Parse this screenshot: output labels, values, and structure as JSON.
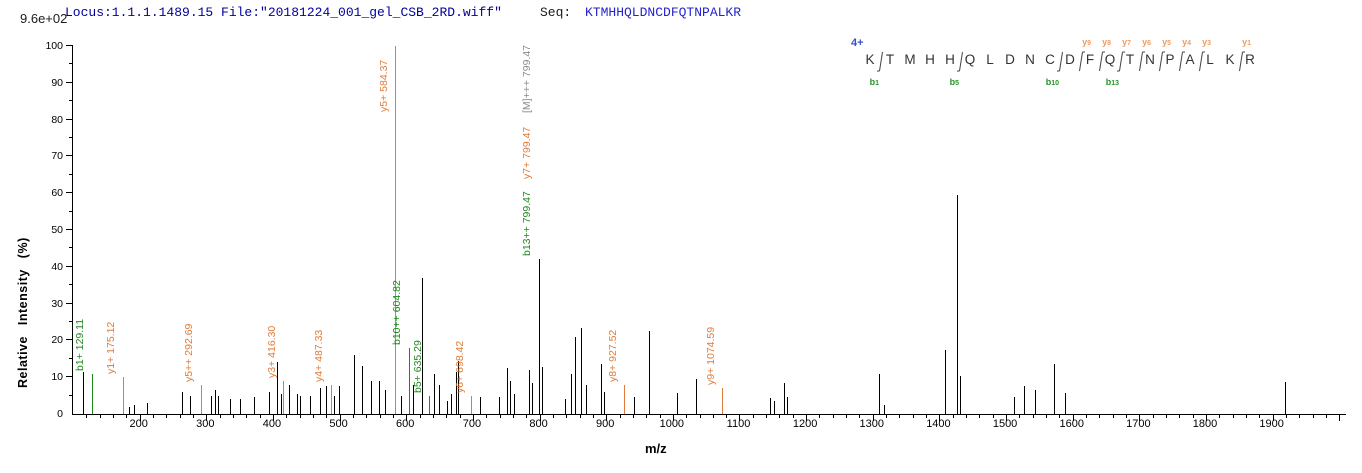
{
  "header": {
    "locus_file": "Locus:1.1.1.1489.15 File:\"20181224_001_gel_CSB_2RD.wiff\"",
    "seq_label": "Seq:",
    "seq_value": "KTMHHQLDNCDFQTNPALKR"
  },
  "y_axis": {
    "scale_label": "9.6e+02",
    "title": "Relative  Intensity  (%)",
    "tick_values": [
      0,
      10,
      20,
      30,
      40,
      50,
      60,
      70,
      80,
      90,
      100
    ]
  },
  "x_axis": {
    "title": "m/z",
    "tick_values": [
      200,
      300,
      400,
      500,
      600,
      700,
      800,
      900,
      1000,
      1100,
      1200,
      1300,
      1400,
      1500,
      1600,
      1700,
      1800,
      1900
    ]
  },
  "colors": {
    "peak": "#000000",
    "y_ion": "#e07b39",
    "b_ion": "#1d8a1d",
    "precursor": "#8a8a8a",
    "header_navy": "#000099",
    "seq_blue": "#2323cc",
    "charge_blue": "#3a50c8",
    "panel_y_ion": "#ef9c62",
    "panel_b_ion": "#27922a",
    "residue_text": "#333333"
  },
  "sequence_panel": {
    "charge": "4+",
    "residues": [
      "K",
      "T",
      "M",
      "H",
      "H",
      "Q",
      "L",
      "D",
      "N",
      "C",
      "D",
      "F",
      "Q",
      "T",
      "N",
      "P",
      "A",
      "L",
      "K",
      "R"
    ],
    "cuts": [
      {
        "after": 1,
        "b": "b1"
      },
      {
        "after": 5,
        "b": "b5"
      },
      {
        "after": 10,
        "b": "b10"
      },
      {
        "after": 11,
        "y": "y9"
      },
      {
        "after": 12,
        "y": "y8"
      },
      {
        "after": 13,
        "y": "y7",
        "b": "b13"
      },
      {
        "after": 14,
        "y": "y6"
      },
      {
        "after": 15,
        "y": "y5"
      },
      {
        "after": 16,
        "y": "y4"
      },
      {
        "after": 17,
        "y": "y3"
      },
      {
        "after": 19,
        "y": "y1"
      }
    ]
  },
  "chart_data": {
    "type": "bar",
    "subtype": "ms2-centroid-spectrum",
    "xlabel": "m/z",
    "ylabel": "Relative Intensity (%)",
    "y_scale_note": "9.6e+02",
    "xlim": [
      100,
      2010
    ],
    "ylim": [
      0,
      100
    ],
    "x_minor_tick_step": 20,
    "y_minor_tick_step": 5,
    "peaks": [
      [
        116,
        11.5
      ],
      [
        185,
        2
      ],
      [
        193,
        2.5
      ],
      [
        212,
        3
      ],
      [
        264,
        6
      ],
      [
        276,
        5
      ],
      [
        308,
        5
      ],
      [
        314,
        6.5
      ],
      [
        319,
        5
      ],
      [
        337,
        4
      ],
      [
        351,
        4
      ],
      [
        372,
        4.5
      ],
      [
        395,
        6
      ],
      [
        407,
        14
      ],
      [
        413,
        5.5
      ],
      [
        425,
        8
      ],
      [
        437,
        5.5
      ],
      [
        441,
        5
      ],
      [
        457,
        5
      ],
      [
        472,
        7
      ],
      [
        480,
        7.5
      ],
      [
        492,
        5
      ],
      [
        500,
        7.5
      ],
      [
        522,
        16
      ],
      [
        534,
        13
      ],
      [
        548,
        9
      ],
      [
        560,
        9
      ],
      [
        569,
        6.5
      ],
      [
        593,
        5
      ],
      [
        611,
        8
      ],
      [
        625,
        37
      ],
      [
        643,
        11
      ],
      [
        650,
        8
      ],
      [
        662,
        3.5
      ],
      [
        668,
        5.5
      ],
      [
        675,
        11.5
      ],
      [
        679,
        14.5
      ],
      [
        711,
        4.5
      ],
      [
        740,
        4.7
      ],
      [
        752,
        12.5
      ],
      [
        756,
        9
      ],
      [
        762,
        5.5
      ],
      [
        785,
        12
      ],
      [
        789,
        8.5
      ],
      [
        805,
        12.8
      ],
      [
        839,
        4.2
      ],
      [
        848,
        11
      ],
      [
        854,
        21
      ],
      [
        863,
        23.5
      ],
      [
        871,
        8
      ],
      [
        893,
        13.5
      ],
      [
        898,
        6
      ],
      [
        942,
        4.7
      ],
      [
        965,
        22.5
      ],
      [
        1007,
        5.6
      ],
      [
        1035,
        9.5
      ],
      [
        1146,
        4.3
      ],
      [
        1152,
        3.5
      ],
      [
        1167,
        8.3
      ],
      [
        1172,
        4.5
      ],
      [
        1310,
        11
      ],
      [
        1317,
        2.5
      ],
      [
        1409,
        17.5
      ],
      [
        1427,
        59.5
      ],
      [
        1431,
        10.4
      ],
      [
        1512,
        4.7
      ],
      [
        1527,
        7.6
      ],
      [
        1544,
        6.5
      ],
      [
        1573,
        13.5
      ],
      [
        1589,
        5.6
      ],
      [
        1919,
        8.8
      ]
    ],
    "annotated": [
      {
        "mz": 129.11,
        "i": 11,
        "ion": "b",
        "labels": [
          {
            "text": "b1+ 129.11",
            "ion": "b"
          }
        ]
      },
      {
        "mz": 175.12,
        "i": 10,
        "ion": "y",
        "labels": [
          {
            "text": "y1+ 175.12",
            "ion": "y"
          }
        ]
      },
      {
        "mz": 292.69,
        "i": 8,
        "ion": "y",
        "labels": [
          {
            "text": "y5++ 292.69",
            "ion": "y"
          }
        ]
      },
      {
        "mz": 416.3,
        "i": 9,
        "ion": "y",
        "labels": [
          {
            "text": "y3+ 416.30",
            "ion": "y"
          }
        ]
      },
      {
        "mz": 487.33,
        "i": 8,
        "ion": "y",
        "labels": [
          {
            "text": "y4+ 487.33",
            "ion": "y"
          }
        ]
      },
      {
        "mz": 584.37,
        "i": 100,
        "ion": "y",
        "label_at": 82,
        "labels": [
          {
            "text": "y5+ 584.37",
            "ion": "y"
          }
        ]
      },
      {
        "mz": 604.82,
        "i": 18,
        "ion": "b",
        "labels": [
          {
            "text": "b10++ 604.82",
            "ion": "b"
          }
        ]
      },
      {
        "mz": 635.29,
        "i": 5,
        "ion": "b",
        "labels": [
          {
            "text": "b5+ 635.29",
            "ion": "b"
          }
        ]
      },
      {
        "mz": 698.42,
        "i": 5,
        "ion": "y",
        "labels": [
          {
            "text": "y6+ 698.42",
            "ion": "y"
          }
        ]
      },
      {
        "mz": 799.47,
        "i": 42,
        "ion": "k",
        "labels": [
          {
            "text": "b13++ 799.47",
            "ion": "b"
          },
          {
            "text": "y7+ 799.47",
            "ion": "y"
          },
          {
            "text": "[M]+++ 799.47",
            "ion": "M"
          }
        ]
      },
      {
        "mz": 927.52,
        "i": 8,
        "ion": "y",
        "labels": [
          {
            "text": "y8+ 927.52",
            "ion": "y"
          }
        ]
      },
      {
        "mz": 1074.59,
        "i": 7,
        "ion": "y",
        "labels": [
          {
            "text": "y9+ 1074.59",
            "ion": "y"
          }
        ]
      }
    ]
  }
}
